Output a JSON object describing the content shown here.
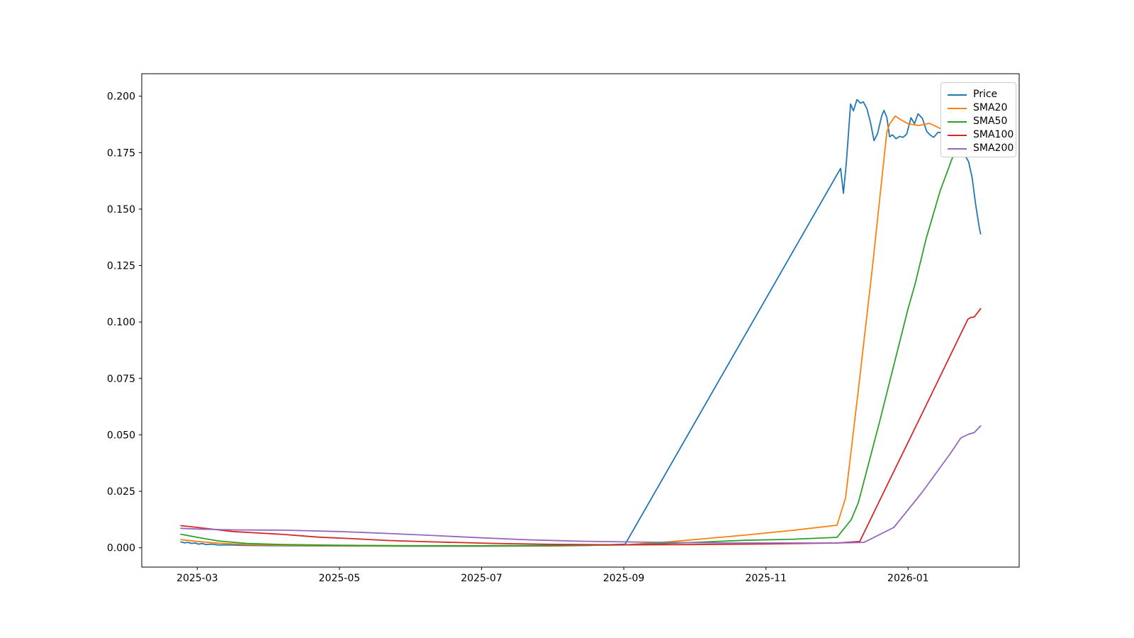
{
  "chart_data": {
    "type": "line",
    "title": "",
    "xlabel": "",
    "ylabel": "",
    "background": "#ffffff",
    "x_axis": {
      "unit": "months offset from 2025-03",
      "tick_labels": [
        "2025-03",
        "2025-05",
        "2025-07",
        "2025-09",
        "2025-11",
        "2026-01"
      ],
      "tick_positions": [
        0,
        2,
        4,
        6,
        8,
        10
      ],
      "data_range": [
        -0.23,
        11.02
      ]
    },
    "y_axis": {
      "tick_labels": [
        "0.000",
        "0.025",
        "0.050",
        "0.075",
        "0.100",
        "0.125",
        "0.150",
        "0.175",
        "0.200"
      ],
      "tick_values": [
        0.0,
        0.025,
        0.05,
        0.075,
        0.1,
        0.125,
        0.15,
        0.175,
        0.2
      ],
      "data_range": [
        -0.009,
        0.2085
      ],
      "grid": false
    },
    "legend": {
      "position": "upper right",
      "labels": [
        "Price",
        "SMA20",
        "SMA50",
        "SMA100",
        "SMA200"
      ]
    },
    "series": [
      {
        "name": "Price",
        "color": "#1f77b4",
        "points": [
          [
            -0.23,
            0.0026
          ],
          [
            -0.18,
            0.0022
          ],
          [
            -0.13,
            0.0024
          ],
          [
            -0.08,
            0.0019
          ],
          [
            -0.03,
            0.0021
          ],
          [
            0.02,
            0.0016
          ],
          [
            0.07,
            0.0019
          ],
          [
            0.12,
            0.0014
          ],
          [
            0.2,
            0.0016
          ],
          [
            0.3,
            0.0012
          ],
          [
            0.45,
            0.0013
          ],
          [
            0.6,
            0.0011
          ],
          [
            0.8,
            0.001
          ],
          [
            1.2,
            0.0009
          ],
          [
            2,
            0.0008
          ],
          [
            3,
            0.0007
          ],
          [
            4,
            0.0007
          ],
          [
            5,
            0.0008
          ],
          [
            5.5,
            0.001
          ],
          [
            6.02,
            0.0016
          ],
          [
            9.05,
            0.168
          ],
          [
            9.09,
            0.157
          ],
          [
            9.13,
            0.17
          ],
          [
            9.19,
            0.1965
          ],
          [
            9.23,
            0.1935
          ],
          [
            9.28,
            0.1985
          ],
          [
            9.33,
            0.1969
          ],
          [
            9.37,
            0.1975
          ],
          [
            9.42,
            0.1945
          ],
          [
            9.47,
            0.1885
          ],
          [
            9.52,
            0.1803
          ],
          [
            9.57,
            0.1835
          ],
          [
            9.63,
            0.1915
          ],
          [
            9.66,
            0.1937
          ],
          [
            9.7,
            0.1907
          ],
          [
            9.74,
            0.182
          ],
          [
            9.78,
            0.1829
          ],
          [
            9.83,
            0.1812
          ],
          [
            9.88,
            0.1822
          ],
          [
            9.93,
            0.1818
          ],
          [
            9.98,
            0.1832
          ],
          [
            10.04,
            0.1905
          ],
          [
            10.09,
            0.1878
          ],
          [
            10.14,
            0.1922
          ],
          [
            10.2,
            0.1902
          ],
          [
            10.26,
            0.1845
          ],
          [
            10.31,
            0.1828
          ],
          [
            10.36,
            0.1818
          ],
          [
            10.42,
            0.184
          ],
          [
            10.48,
            0.1838
          ],
          [
            10.55,
            0.1832
          ],
          [
            10.62,
            0.182
          ],
          [
            10.7,
            0.1795
          ],
          [
            10.78,
            0.175
          ],
          [
            10.85,
            0.171
          ],
          [
            10.9,
            0.164
          ],
          [
            10.95,
            0.152
          ],
          [
            11.0,
            0.142
          ],
          [
            11.02,
            0.139
          ]
        ]
      },
      {
        "name": "SMA20",
        "color": "#ff7f0e",
        "points": [
          [
            -0.23,
            0.0036
          ],
          [
            0,
            0.0028
          ],
          [
            0.3,
            0.002
          ],
          [
            0.7,
            0.0014
          ],
          [
            1.2,
            0.0011
          ],
          [
            2,
            0.0009
          ],
          [
            3,
            0.0008
          ],
          [
            4,
            0.0008
          ],
          [
            5,
            0.0009
          ],
          [
            6.02,
            0.0013
          ],
          [
            6.7,
            0.0028
          ],
          [
            7.7,
            0.0056
          ],
          [
            8.4,
            0.0078
          ],
          [
            9.0,
            0.01
          ],
          [
            9.12,
            0.022
          ],
          [
            9.3,
            0.07
          ],
          [
            9.5,
            0.125
          ],
          [
            9.7,
            0.184
          ],
          [
            9.74,
            0.1877
          ],
          [
            9.82,
            0.1912
          ],
          [
            9.9,
            0.1895
          ],
          [
            10.0,
            0.1878
          ],
          [
            10.15,
            0.187
          ],
          [
            10.3,
            0.188
          ],
          [
            10.48,
            0.1853
          ],
          [
            10.7,
            0.185
          ],
          [
            11.02,
            0.1845
          ]
        ]
      },
      {
        "name": "SMA50",
        "color": "#2ca02c",
        "points": [
          [
            -0.23,
            0.006
          ],
          [
            0,
            0.0046
          ],
          [
            0.3,
            0.003
          ],
          [
            0.7,
            0.0019
          ],
          [
            1.2,
            0.0014
          ],
          [
            2,
            0.0011
          ],
          [
            3,
            0.0009
          ],
          [
            4,
            0.0009
          ],
          [
            5,
            0.001
          ],
          [
            6.02,
            0.0013
          ],
          [
            7,
            0.0024
          ],
          [
            7.7,
            0.0033
          ],
          [
            8.4,
            0.0038
          ],
          [
            9.0,
            0.0046
          ],
          [
            9.1,
            0.0085
          ],
          [
            9.2,
            0.0125
          ],
          [
            9.3,
            0.02
          ],
          [
            9.6,
            0.056
          ],
          [
            10.0,
            0.106
          ],
          [
            10.1,
            0.117
          ],
          [
            10.25,
            0.1365
          ],
          [
            10.45,
            0.158
          ],
          [
            10.62,
            0.1725
          ],
          [
            10.8,
            0.184
          ],
          [
            11.02,
            0.193
          ]
        ]
      },
      {
        "name": "SMA100",
        "color": "#d62728",
        "points": [
          [
            -0.23,
            0.0098
          ],
          [
            0,
            0.009
          ],
          [
            0.5,
            0.0072
          ],
          [
            1.21,
            0.0059
          ],
          [
            1.7,
            0.0047
          ],
          [
            2.21,
            0.004
          ],
          [
            2.7,
            0.0032
          ],
          [
            3.21,
            0.0027
          ],
          [
            3.7,
            0.0023
          ],
          [
            4.2,
            0.0019
          ],
          [
            5,
            0.0015
          ],
          [
            6.02,
            0.0013
          ],
          [
            7,
            0.0014
          ],
          [
            8,
            0.0017
          ],
          [
            9.0,
            0.0021
          ],
          [
            9.32,
            0.0028
          ],
          [
            9.7,
            0.0274
          ],
          [
            10.2,
            0.0597
          ],
          [
            10.7,
            0.0921
          ],
          [
            10.84,
            0.1012
          ],
          [
            10.88,
            0.102
          ],
          [
            10.93,
            0.1022
          ],
          [
            11.02,
            0.1059
          ]
        ]
      },
      {
        "name": "SMA200",
        "color": "#9467bd",
        "points": [
          [
            -0.23,
            0.0086
          ],
          [
            0,
            0.0083
          ],
          [
            0.5,
            0.0079
          ],
          [
            1.21,
            0.0078
          ],
          [
            2,
            0.0072
          ],
          [
            2.7,
            0.0063
          ],
          [
            3.21,
            0.0056
          ],
          [
            4,
            0.0044
          ],
          [
            4.7,
            0.0035
          ],
          [
            5.4,
            0.0029
          ],
          [
            6.02,
            0.0026
          ],
          [
            6.7,
            0.0023
          ],
          [
            7.5,
            0.0021
          ],
          [
            8.5,
            0.0021
          ],
          [
            9.0,
            0.0021
          ],
          [
            9.38,
            0.0024
          ],
          [
            9.8,
            0.009
          ],
          [
            10.2,
            0.0247
          ],
          [
            10.6,
            0.042
          ],
          [
            10.74,
            0.0486
          ],
          [
            10.85,
            0.0503
          ],
          [
            10.93,
            0.051
          ],
          [
            11.02,
            0.054
          ]
        ]
      }
    ]
  }
}
